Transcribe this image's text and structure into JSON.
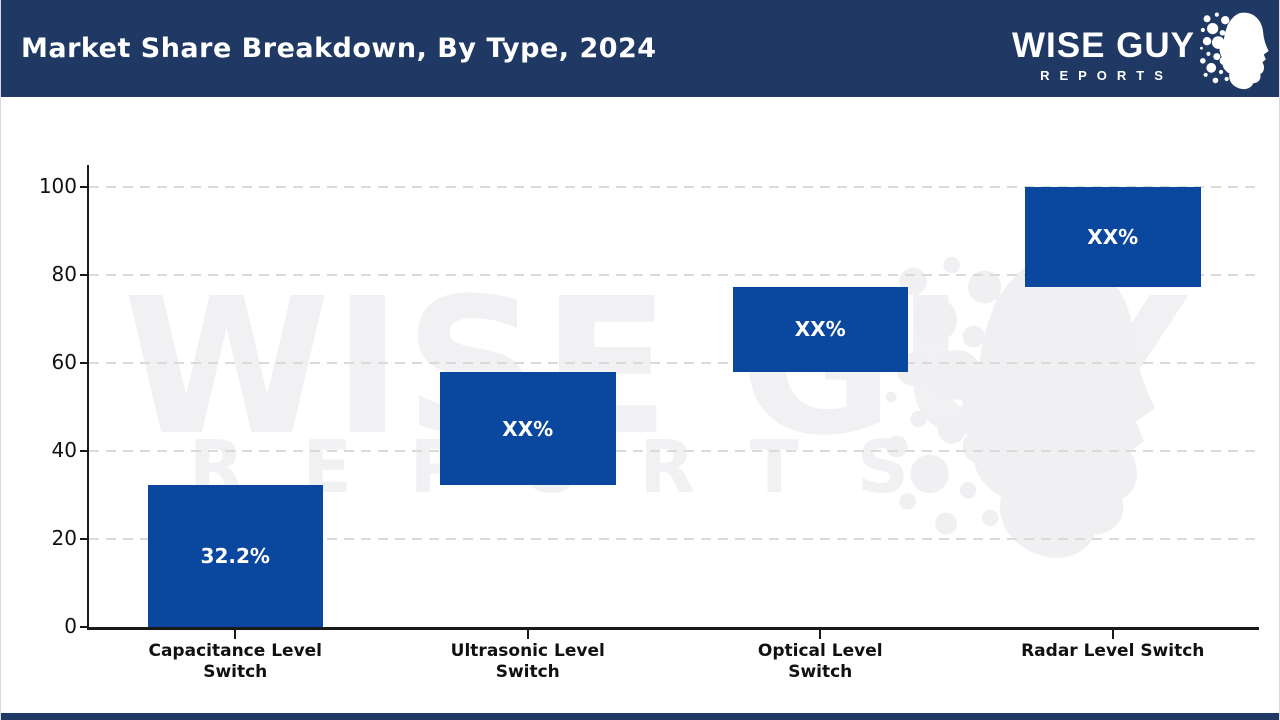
{
  "header": {
    "title": "Market Share Breakdown, By Type, 2024",
    "bg_color": "#1F3864",
    "logo": {
      "line1": "WISE GUY",
      "line2": "REPORTS"
    }
  },
  "footer": {
    "bg_color": "#1F3864"
  },
  "watermark": {
    "line1": "WISE GUY",
    "line2": "REPORTS",
    "color": "#f1f1f4"
  },
  "chart_data": {
    "type": "bar",
    "subtype": "waterfall-floating-bars",
    "title": "Market Share Breakdown, By Type, 2024",
    "categories": [
      "Capacitance Level\nSwitch",
      "Ultrasonic Level\nSwitch",
      "Optical Level\nSwitch",
      "Radar Level Switch"
    ],
    "segments": [
      {
        "start": 0,
        "end": 32.2,
        "label": "32.2%"
      },
      {
        "start": 32.2,
        "end": 58,
        "label": "XX%"
      },
      {
        "start": 58,
        "end": 77.3,
        "label": "XX%"
      },
      {
        "start": 77.3,
        "end": 100,
        "label": "XX%"
      }
    ],
    "xlabel": "",
    "ylabel": "",
    "ylim": [
      0,
      100
    ],
    "yticks": [
      0,
      20,
      40,
      60,
      80,
      100
    ],
    "grid": "horizontal-dashed",
    "legend": "none",
    "bar_color": "#0A479E",
    "bar_label_color": "#ffffff"
  }
}
